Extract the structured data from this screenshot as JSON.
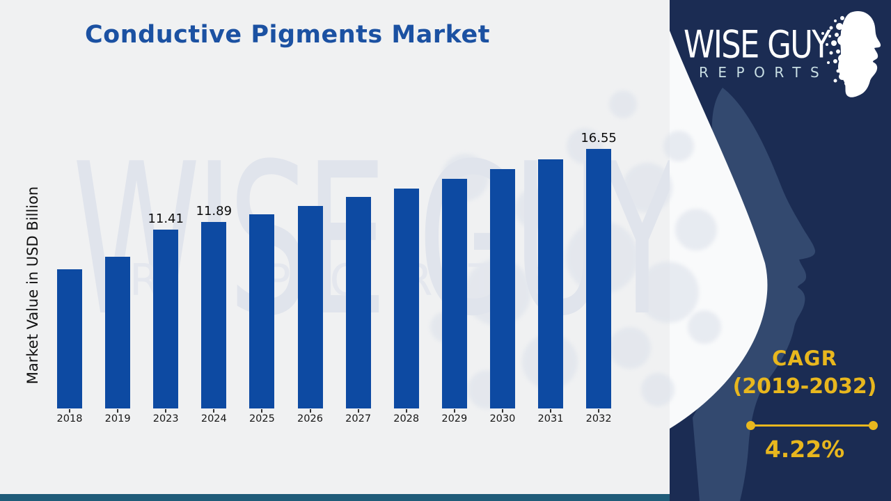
{
  "page": {
    "title": "Conductive Pigments Market"
  },
  "logo": {
    "brand_top": "WISE GUY",
    "brand_bottom": "REPORTS",
    "head_icon": "dotted-face-profile-icon"
  },
  "watermark": {
    "line1": "WISE GUY",
    "line2": "REPORTS"
  },
  "cagr": {
    "label": "CAGR",
    "range": "(2019-2032)",
    "value": "4.22%"
  },
  "colors": {
    "bar": "#0d4aa2",
    "title": "#1b51a2",
    "panel_navy": "#1b2c53",
    "panel_face": "#33496f",
    "gold": "#e8b71e",
    "teal_footer": "#1f5c79",
    "chart_bg": "#f0f1f2",
    "bulge_white": "#f9fafb"
  },
  "chart_data": {
    "type": "bar",
    "title": "Conductive Pigments Market",
    "xlabel": "",
    "ylabel": "Market Value in USD Billion",
    "categories": [
      "2018",
      "2019",
      "2023",
      "2024",
      "2025",
      "2026",
      "2027",
      "2028",
      "2029",
      "2030",
      "2031",
      "2032"
    ],
    "values": [
      8.88,
      9.67,
      11.41,
      11.89,
      12.39,
      12.91,
      13.46,
      14.03,
      14.62,
      15.24,
      15.88,
      16.55
    ],
    "bar_labels": [
      "",
      "",
      "11.41",
      "11.89",
      "",
      "",
      "",
      "",
      "",
      "",
      "",
      "16.55"
    ],
    "ylim": [
      0,
      18
    ],
    "grid": false,
    "legend": null,
    "bar_color": "#0d4aa2",
    "annotation": "CAGR (2019-2032) 4.22%"
  }
}
